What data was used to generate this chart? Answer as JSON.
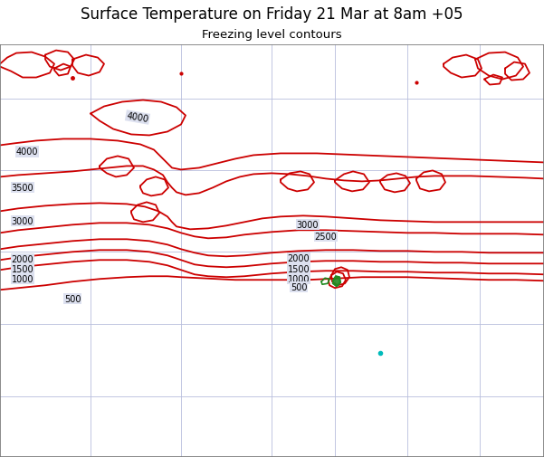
{
  "title": "Surface Temperature on Friday 21 Mar at 8am +05",
  "subtitle": "Freezing level contours",
  "bg_map": "#dce0ef",
  "bg_title": "#ffffff",
  "contour_color": "#cc0000",
  "grid_color": "#b8bedd",
  "fig_width": 6.01,
  "fig_height": 5.06,
  "dpi": 100,
  "title_fontsize": 12,
  "subtitle_fontsize": 9.5,
  "label_fontsize": 7,
  "lw": 1.3
}
